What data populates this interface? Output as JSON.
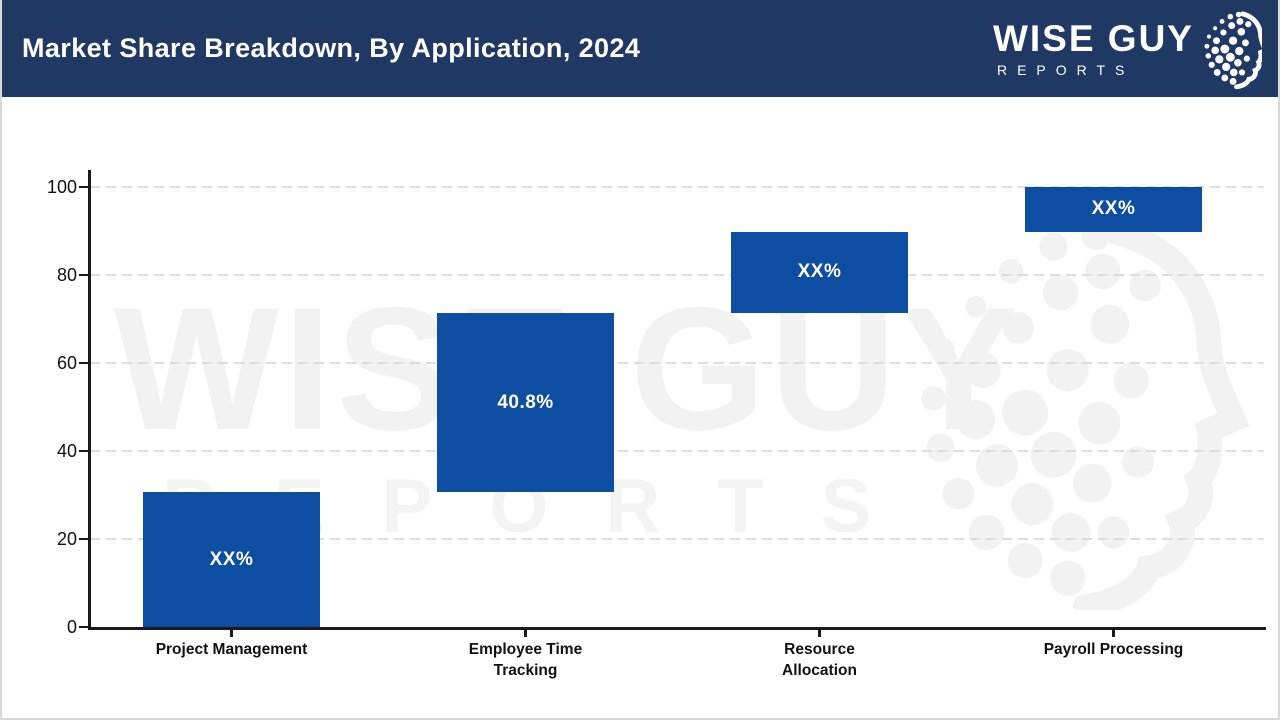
{
  "header": {
    "title": "Market Share Breakdown, By Application, 2024",
    "logo": {
      "name": "WISE GUY",
      "tagline": "REPORTS"
    }
  },
  "watermark": {
    "name": "WISE GUY",
    "tagline": "REPORTS"
  },
  "chart_data": {
    "type": "bar",
    "variant": "waterfall",
    "title": "Market Share Breakdown, By Application, 2024",
    "unit": "%",
    "categories": [
      "Project Management",
      "Employee Time Tracking",
      "Resource Allocation",
      "Payroll Processing"
    ],
    "category_lines": [
      [
        "Project Management"
      ],
      [
        "Employee Time",
        "Tracking"
      ],
      [
        "Resource",
        "Allocation"
      ],
      [
        "Payroll Processing"
      ]
    ],
    "series": [
      {
        "name": "Market Share",
        "segments": [
          {
            "category": "Project Management",
            "start": 0,
            "end": 30.6
          },
          {
            "category": "Employee Time Tracking",
            "start": 30.6,
            "end": 71.4
          },
          {
            "category": "Resource Allocation",
            "start": 71.4,
            "end": 89.8
          },
          {
            "category": "Payroll Processing",
            "start": 89.8,
            "end": 100
          }
        ]
      }
    ],
    "bar_labels": [
      "XX%",
      "40.8%",
      "XX%",
      "XX%"
    ],
    "yticks": [
      0,
      20,
      40,
      60,
      80,
      100
    ],
    "ylim": [
      0,
      104
    ],
    "xlabel": "",
    "ylabel": "",
    "legend": "none",
    "grid": "horizontal-dashed",
    "colors": {
      "bar": "#0d4da2",
      "bar_label": "#ffffff",
      "grid": "#dcdcdc",
      "axis": "#1a1a1a",
      "header_bg": "#1f3864",
      "header_text": "#ffffff",
      "watermark": "#f2f2f2"
    }
  }
}
